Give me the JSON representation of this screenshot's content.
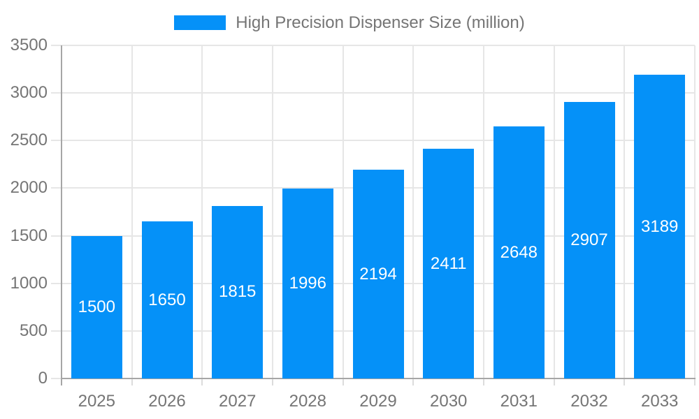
{
  "legend": {
    "label": "High Precision Dispenser Size (million)"
  },
  "chart_data": {
    "type": "bar",
    "title": "High Precision Dispenser Size (million)",
    "series_name": "High Precision Dispenser Size (million)",
    "categories": [
      "2025",
      "2026",
      "2027",
      "2028",
      "2029",
      "2030",
      "2031",
      "2032",
      "2033"
    ],
    "values": [
      1500,
      1650,
      1815,
      1996,
      2194,
      2411,
      2648,
      2907,
      3189
    ],
    "xlabel": "",
    "ylabel": "",
    "ylim": [
      0,
      3500
    ],
    "ytick_step": 500,
    "yticks": [
      0,
      500,
      1000,
      1500,
      2000,
      2500,
      3000,
      3500
    ],
    "grid": true,
    "legend_position": "top",
    "value_label_style": "inside-center",
    "colors": {
      "bar": "#0591F8",
      "tick_text": "#757575",
      "value_text": "#FFFFFF",
      "gridline": "#E6E6E6",
      "tick_mark": "#DCDCDC",
      "axis": "#A6A6A6",
      "background": "#FFFFFF"
    }
  }
}
